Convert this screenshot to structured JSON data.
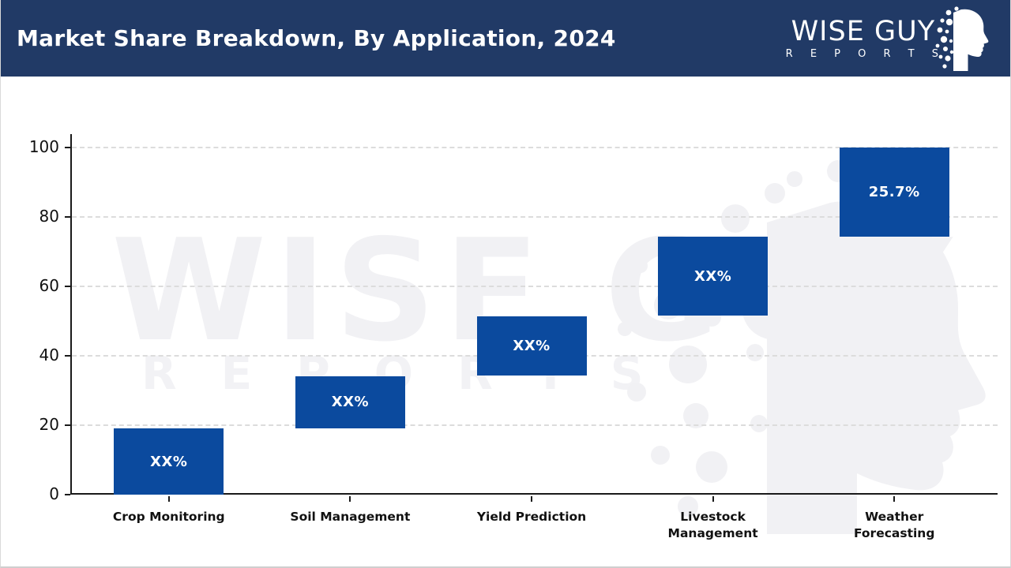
{
  "header": {
    "title": "Market Share Breakdown, By Application, 2024",
    "logo": {
      "line1": "WISE GUY",
      "line2": "R E P O R T S"
    }
  },
  "watermark": {
    "line1": "WISE GUY",
    "line2": "REPORTS"
  },
  "colors": {
    "header_bg": "#213a66",
    "bar": "#0b4a9e",
    "title_text": "#ffffff",
    "grid": "#dcdcdc",
    "axis": "#1a1a1a",
    "watermark": "#f1f1f4"
  },
  "chart_data": {
    "type": "bar",
    "subtype": "waterfall",
    "title": "Market Share Breakdown, By Application, 2024",
    "categories": [
      "Crop Monitoring",
      "Soil Management",
      "Yield Prediction",
      "Livestock Management",
      "Weather Forecasting"
    ],
    "bars": [
      {
        "category": "Crop Monitoring",
        "start": 0,
        "end": 19.0,
        "label": "XX%"
      },
      {
        "category": "Soil Management",
        "start": 19.2,
        "end": 34.2,
        "label": "XX%"
      },
      {
        "category": "Yield Prediction",
        "start": 34.3,
        "end": 51.4,
        "label": "XX%"
      },
      {
        "category": "Livestock Management",
        "start": 51.6,
        "end": 74.3,
        "label": "XX%"
      },
      {
        "category": "Weather Forecasting",
        "start": 74.3,
        "end": 100,
        "label": "25.7%"
      }
    ],
    "yticks": [
      0,
      20,
      40,
      60,
      80,
      100
    ],
    "ylim": [
      0,
      104
    ],
    "xlabel": "",
    "ylabel": "",
    "grid": "horizontal-dashed",
    "legend": "none"
  }
}
